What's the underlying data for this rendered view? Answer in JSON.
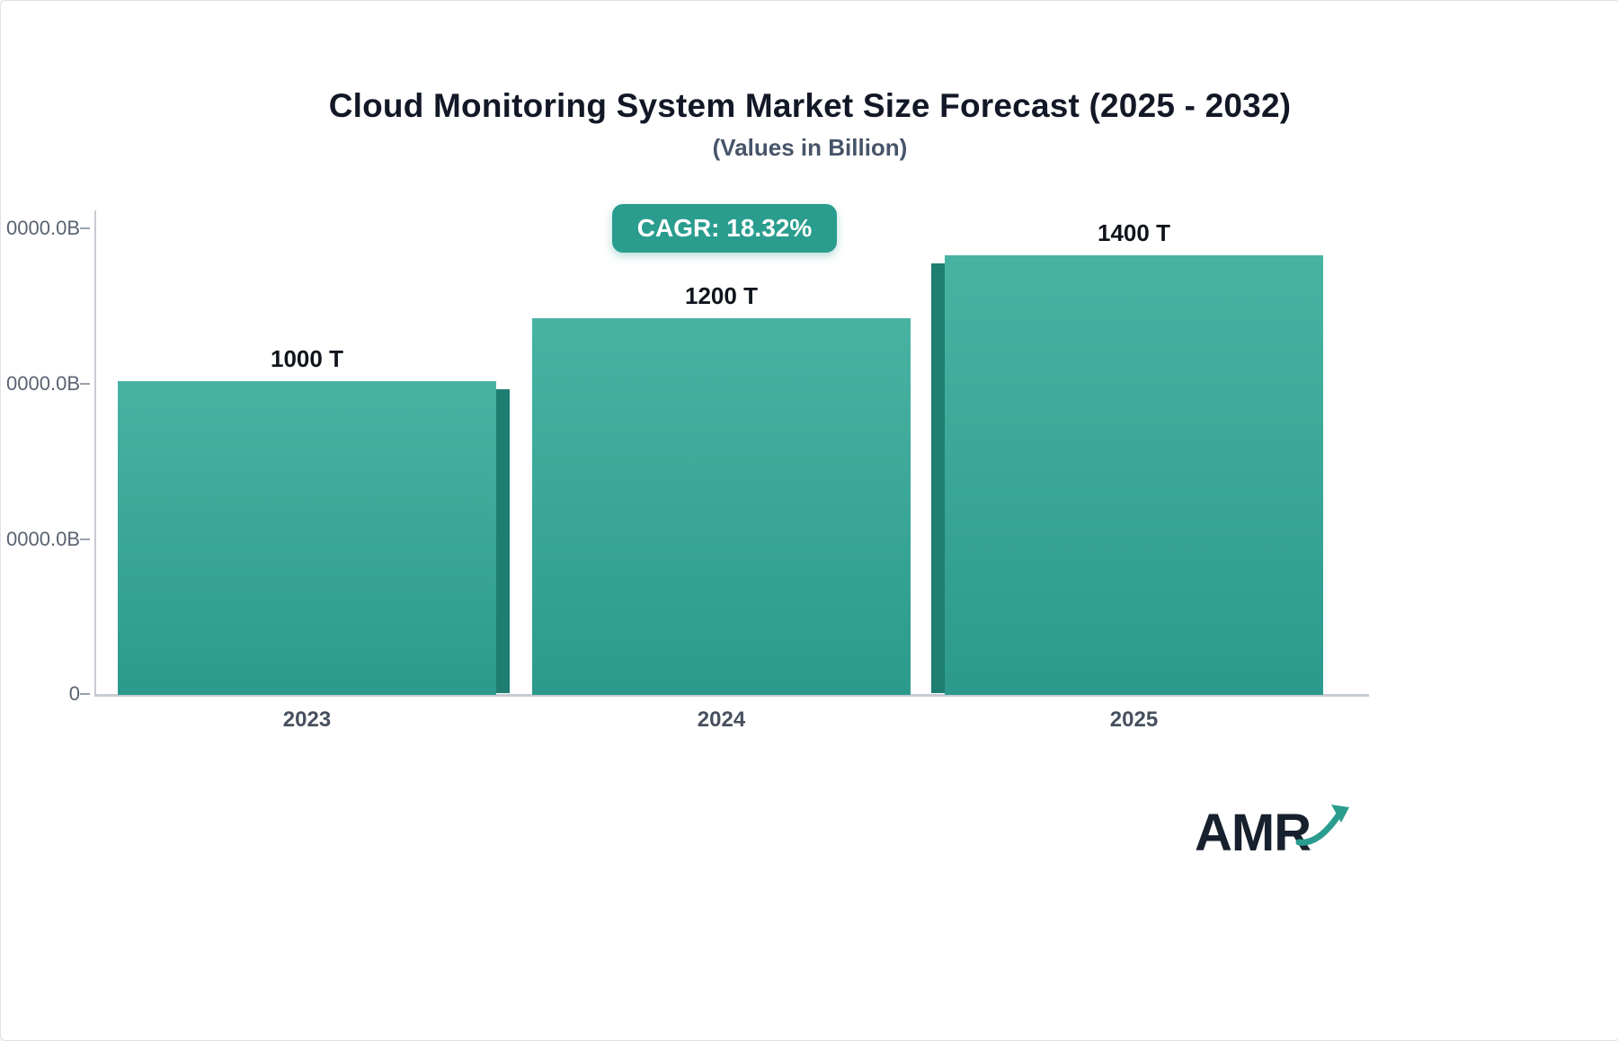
{
  "page": {
    "title": "Cloud Monitoring System Market Size Forecast (2025 - 2032)",
    "subtitle": "(Values in Billion)",
    "cagr_label": "CAGR: 18.32%",
    "logo_text": "AMR"
  },
  "colors": {
    "bar_top": "#48b3a3",
    "bar_bottom": "#2b9a8c",
    "bar_side": "#1f7d72",
    "badge_bg": "#2a9d8f",
    "arrow": "#2a9d8f",
    "title_text": "#121826",
    "subtitle_text": "#475469",
    "axis_text": "#5a6372",
    "axis_line": "#c7ccd3"
  },
  "chart_data": {
    "type": "bar",
    "title": "Cloud Monitoring System Market Size Forecast (2025 - 2032)",
    "subtitle": "(Values in Billion)",
    "annotation": "CAGR: 18.32%",
    "categories": [
      "2023",
      "2024",
      "2025"
    ],
    "values": [
      1000,
      1200,
      1400
    ],
    "value_labels": [
      "1000 T",
      "1200 T",
      "1400 T"
    ],
    "unit": "T",
    "side_faces": [
      "right",
      "none",
      "left"
    ],
    "xlabel": "",
    "ylabel": "",
    "ytick_labels": [
      "0000.0B",
      "0000.0B",
      "0000.0B",
      "0"
    ],
    "ylim": [
      0,
      1540
    ],
    "grid": false,
    "legend": "none"
  }
}
